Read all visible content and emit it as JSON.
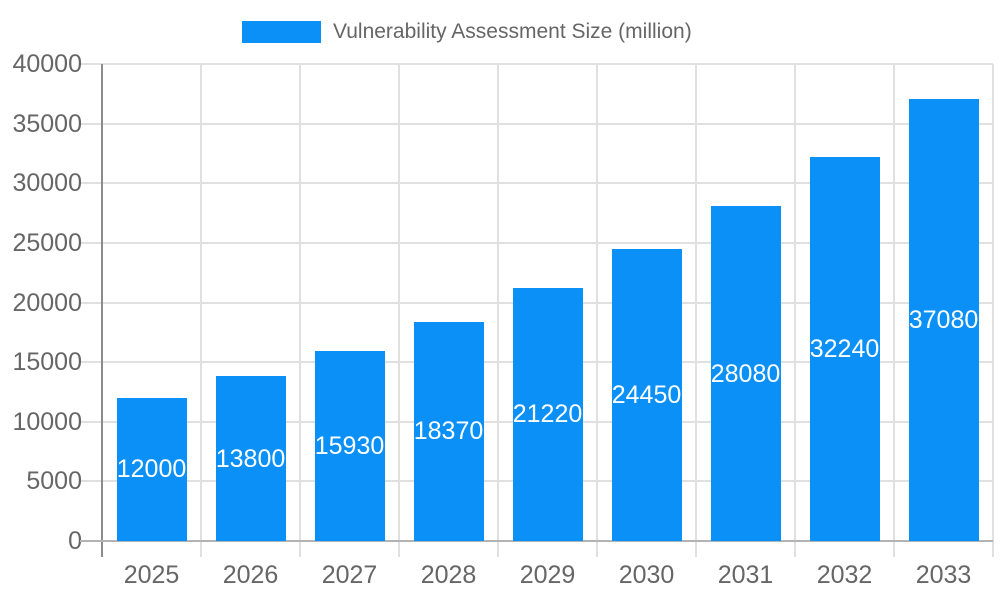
{
  "chart_data": {
    "type": "bar",
    "title": "Vulnerability Assessment Size (million)",
    "categories": [
      "2025",
      "2026",
      "2027",
      "2028",
      "2029",
      "2030",
      "2031",
      "2032",
      "2033"
    ],
    "values": [
      12000,
      13800,
      15930,
      18370,
      21220,
      24450,
      28080,
      32240,
      37080
    ],
    "value_labels": [
      "12000",
      "13800",
      "15930",
      "18370",
      "21220",
      "24450",
      "28080",
      "32240",
      "37080"
    ],
    "xlabel": "",
    "ylabel": "",
    "ylim": [
      0,
      40000
    ],
    "ytick_step": 5000,
    "ytick_labels": [
      "0",
      "5000",
      "10000",
      "15000",
      "20000",
      "25000",
      "30000",
      "35000",
      "40000"
    ],
    "grid": true,
    "legend_position": "top",
    "bar_color": "#0a90f7",
    "value_label_color": "#ffffff"
  },
  "colors": {
    "background": "#ffffff",
    "bar": "#0a90f7",
    "axis_text": "#666666",
    "grid_line": "#e0e0e0",
    "y_axis_line": "#8c8c8c",
    "x_baseline": "#b3b3b3"
  }
}
